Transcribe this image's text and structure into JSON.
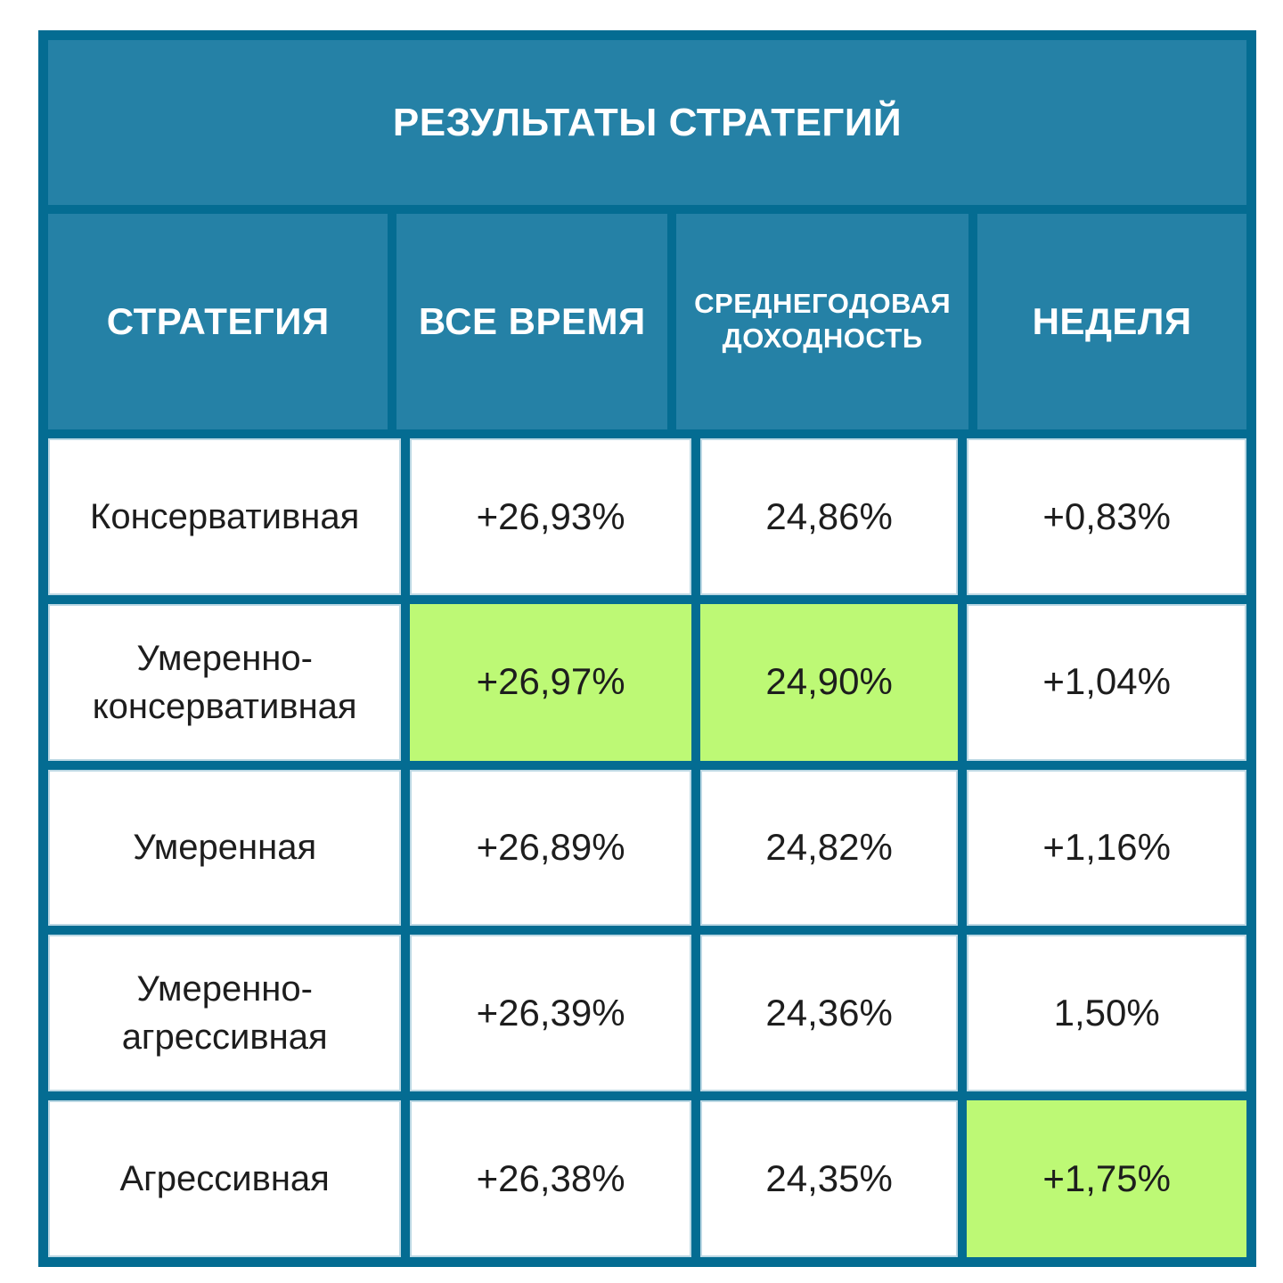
{
  "chart_data": {
    "type": "table",
    "title": "РЕЗУЛЬТАТЫ СТРАТЕГИЙ",
    "columns": [
      "СТРАТЕГИЯ",
      "ВСЕ ВРЕМЯ",
      "СРЕДНЕГОДОВАЯ ДОХОДНОСТЬ",
      "НЕДЕЛЯ"
    ],
    "rows": [
      {
        "strategy": "Консервативная",
        "all_time": "+26,93%",
        "annual_return": "24,86%",
        "week": "+0,83%"
      },
      {
        "strategy": "Умеренно-консервативная",
        "all_time": "+26,97%",
        "annual_return": "24,90%",
        "week": "+1,04%"
      },
      {
        "strategy": "Умеренная",
        "all_time": "+26,89%",
        "annual_return": "24,82%",
        "week": "+1,16%"
      },
      {
        "strategy": "Умеренно-агрессивная",
        "all_time": "+26,39%",
        "annual_return": "24,36%",
        "week": "1,50%"
      },
      {
        "strategy": "Агрессивная",
        "all_time": "+26,38%",
        "annual_return": "24,35%",
        "week": "+1,75%"
      }
    ],
    "highlighted_cells": [
      {
        "row": 1,
        "columns": [
          "all_time",
          "annual_return"
        ]
      },
      {
        "row": 4,
        "columns": [
          "week"
        ]
      }
    ],
    "layout": {
      "grid": "on",
      "header_position": "top"
    }
  },
  "colors": {
    "border_color": "#046C92",
    "header_bg": "#2581A6",
    "highlight": "#BDF975",
    "cell_bg": "#FFFFFF",
    "cell_edge": "#BCD8E4",
    "header_text": "#FFFFFF",
    "data_text": "#1D1D1D",
    "page_bg": "#FFFFFF"
  }
}
